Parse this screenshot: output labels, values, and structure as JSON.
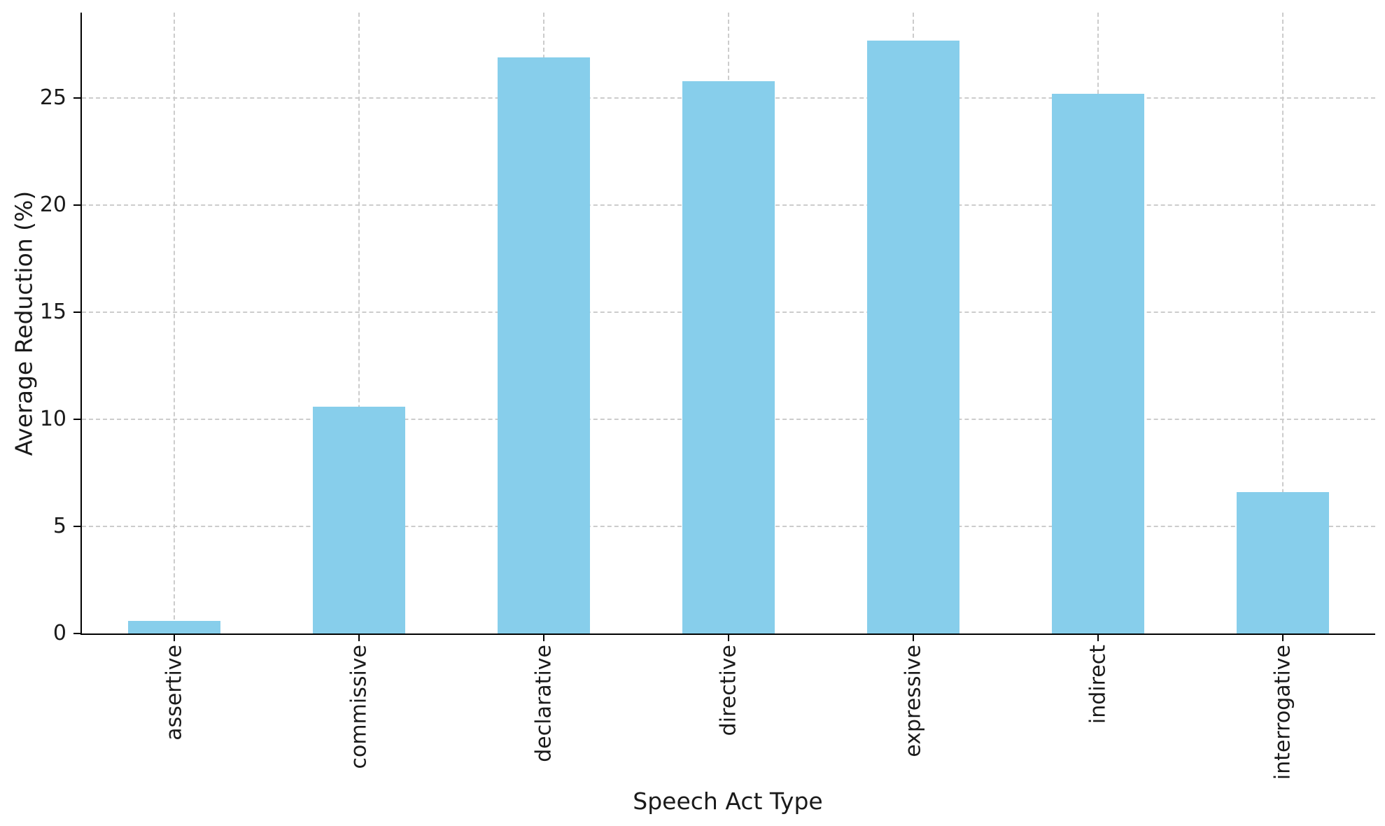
{
  "figure": {
    "background": "#ffffff",
    "text_color": "#1a1a1a"
  },
  "chart_data": {
    "type": "bar",
    "title": "",
    "xlabel": "Speech Act Type",
    "ylabel": "Average Reduction (%)",
    "categories": [
      "assertive",
      "commissive",
      "declarative",
      "directive",
      "expressive",
      "indirect",
      "interrogative"
    ],
    "values": [
      0.6,
      10.6,
      26.9,
      25.8,
      27.7,
      25.2,
      6.6
    ],
    "ylim": [
      0,
      29
    ],
    "yticks": [
      0,
      5,
      10,
      15,
      20,
      25
    ],
    "bar_color": "#87CEEB",
    "bar_width_fraction": 0.5,
    "grid": true,
    "grid_color": "#cccccc",
    "grid_style": "dashed",
    "legend": "none",
    "tick_label_rotation_x": 90
  }
}
